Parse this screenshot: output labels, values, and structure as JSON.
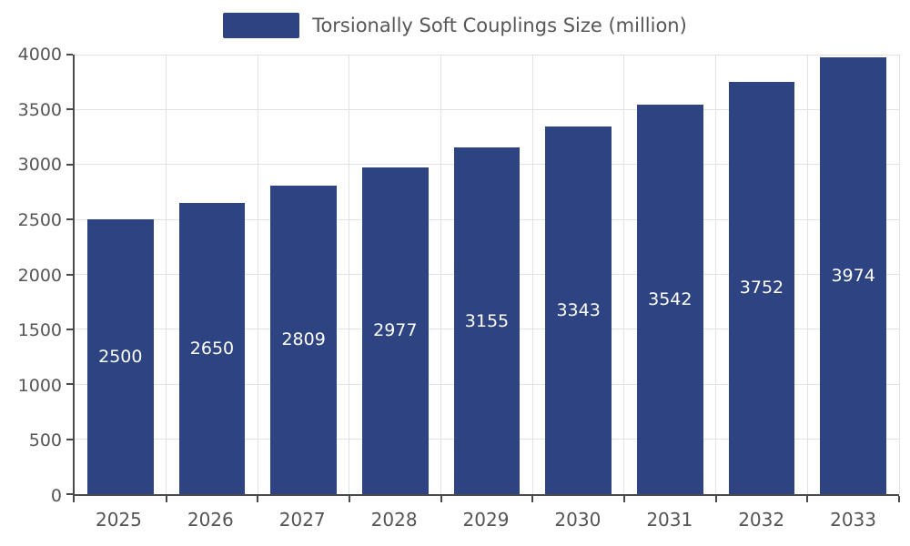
{
  "legend": {
    "label": "Torsionally Soft Couplings Size (million)"
  },
  "chart_data": {
    "type": "bar",
    "title": "Torsionally Soft Couplings Size (million)",
    "series_name": "Torsionally Soft Couplings Size (million)",
    "categories": [
      "2025",
      "2026",
      "2027",
      "2028",
      "2029",
      "2030",
      "2031",
      "2032",
      "2033"
    ],
    "values": [
      2500,
      2650,
      2809,
      2977,
      3155,
      3343,
      3542,
      3752,
      3974
    ],
    "xlabel": "",
    "ylabel": "",
    "ylim": [
      0,
      4000
    ],
    "ytick_step": 500,
    "yticks": [
      0,
      500,
      1000,
      1500,
      2000,
      2500,
      3000,
      3500,
      4000
    ],
    "grid": true,
    "legend_position": "top",
    "bar_color": "#2e4482",
    "value_label_color": "#ffffff",
    "axis_text_color": "#555555",
    "gridline_color": "#e2e2e2"
  }
}
